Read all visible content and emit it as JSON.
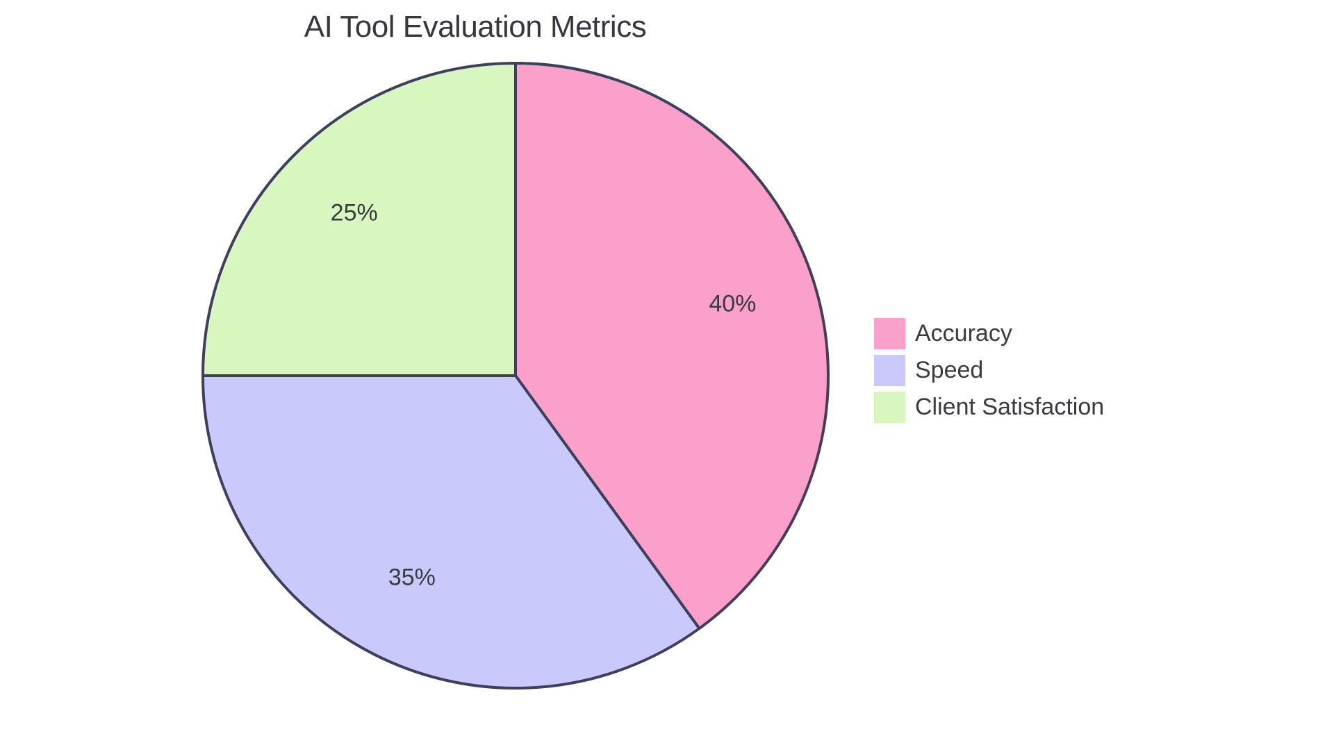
{
  "page": {
    "background_color": "#FFFFFF"
  },
  "chart_data": {
    "type": "pie",
    "title": "AI Tool Evaluation Metrics",
    "direction": "clockwise",
    "start_position": "top",
    "legend_position": "right",
    "stroke_color": "#3E3F5B",
    "stroke_width": 4,
    "label_color": "#3A3A40",
    "title_color": "#37373F",
    "slices": [
      {
        "label": "Accuracy",
        "value": 40,
        "display": "40%",
        "color": "#FAA0CA"
      },
      {
        "label": "Speed",
        "value": 35,
        "display": "35%",
        "color": "#C9C9FB"
      },
      {
        "label": "Client Satisfaction",
        "value": 25,
        "display": "25%",
        "color": "#D8F7BE"
      }
    ]
  }
}
